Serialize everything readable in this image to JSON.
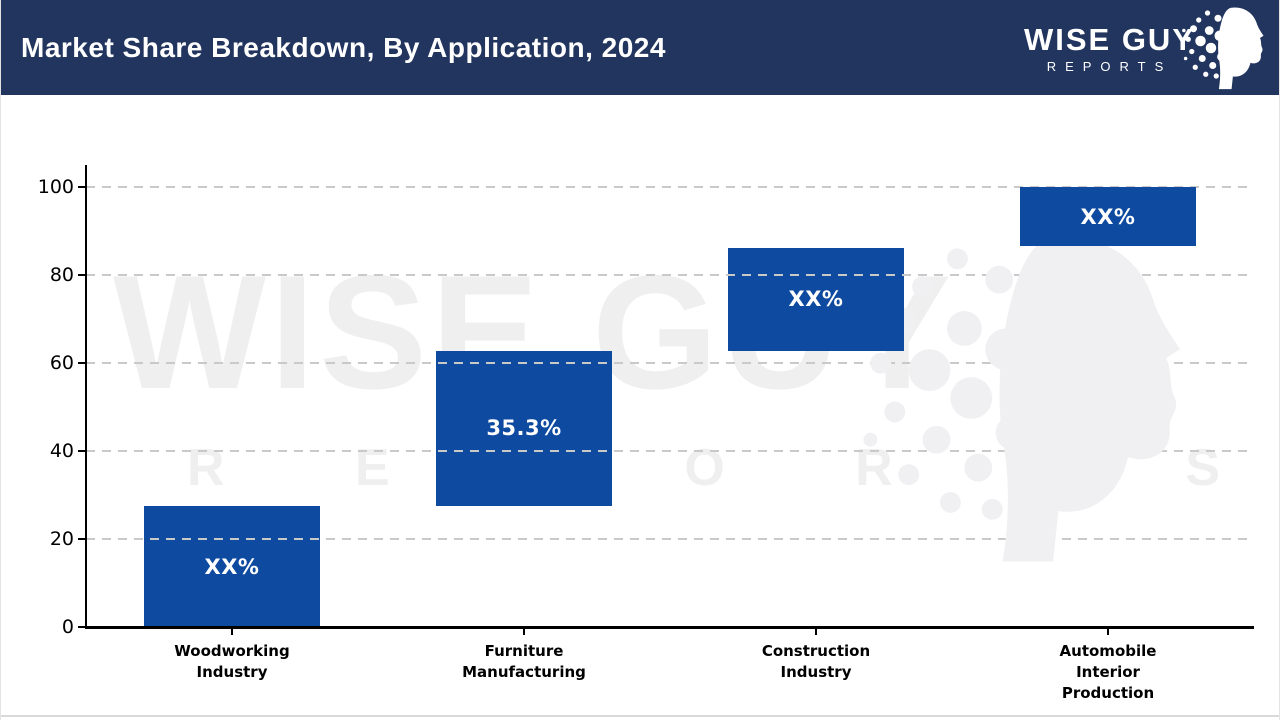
{
  "header": {
    "title": "Market Share Breakdown, By Application, 2024",
    "logo": {
      "brand": "WISE GUY",
      "sub": "REPORTS"
    }
  },
  "watermark": {
    "brand": "WISE GUY",
    "sub": "R E P O R T S"
  },
  "colors": {
    "header_bg": "#22355f",
    "bar": "#0d4aa0",
    "grid_line": "#c9c9c9",
    "axis": "#000000",
    "bar_label": "#ffffff",
    "watermark": "#efefef"
  },
  "chart_data": {
    "type": "bar",
    "variant": "waterfall",
    "title": "Market Share Breakdown, By Application, 2024",
    "xlabel": "",
    "ylabel": "",
    "ylim": [
      0,
      100
    ],
    "yticks": [
      0,
      20,
      40,
      60,
      80,
      100
    ],
    "grid": "horizontal-dashed",
    "legend": "none",
    "bar_color": "#0d4aa0",
    "categories": [
      "Woodworking Industry",
      "Furniture Manufacturing",
      "Construction Industry",
      "Automobile Interior Production"
    ],
    "segments": [
      {
        "category": "Woodworking Industry",
        "start": 0,
        "end": 27.5,
        "label": "XX%"
      },
      {
        "category": "Furniture Manufacturing",
        "start": 27.5,
        "end": 62.8,
        "label": "35.3%",
        "value": 35.3
      },
      {
        "category": "Construction Industry",
        "start": 62.8,
        "end": 86.2,
        "label": "XX%"
      },
      {
        "category": "Automobile Interior Production",
        "start": 86.5,
        "end": 100,
        "label": "XX%"
      }
    ]
  }
}
